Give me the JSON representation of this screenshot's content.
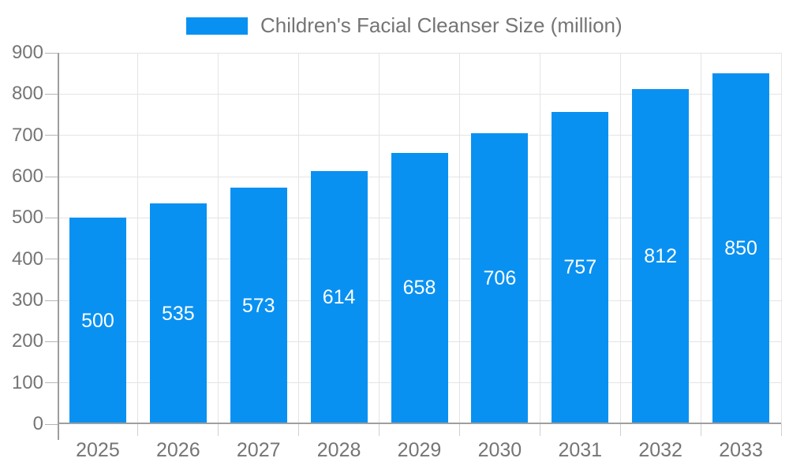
{
  "chart_data": {
    "type": "bar",
    "title": "Children's Facial Cleanser Size (million)",
    "categories": [
      "2025",
      "2026",
      "2027",
      "2028",
      "2029",
      "2030",
      "2031",
      "2032",
      "2033"
    ],
    "values": [
      500,
      535,
      573,
      614,
      658,
      706,
      757,
      812,
      850
    ],
    "xlabel": "",
    "ylabel": "",
    "ylim": [
      0,
      900
    ],
    "ytick_step": 100,
    "yticks": [
      0,
      100,
      200,
      300,
      400,
      500,
      600,
      700,
      800,
      900
    ],
    "grid": true,
    "legend_position": "top-center",
    "colors": {
      "bar": "#0991F2",
      "bar_label": "#FFFFFF",
      "axis_line": "#9E9E9E",
      "gridline": "#E4E4E4",
      "tick_y": "#B5B5B5",
      "tick_x": "#CFCFCF",
      "axis_text": "#757575",
      "background": "#FFFFFF"
    }
  }
}
